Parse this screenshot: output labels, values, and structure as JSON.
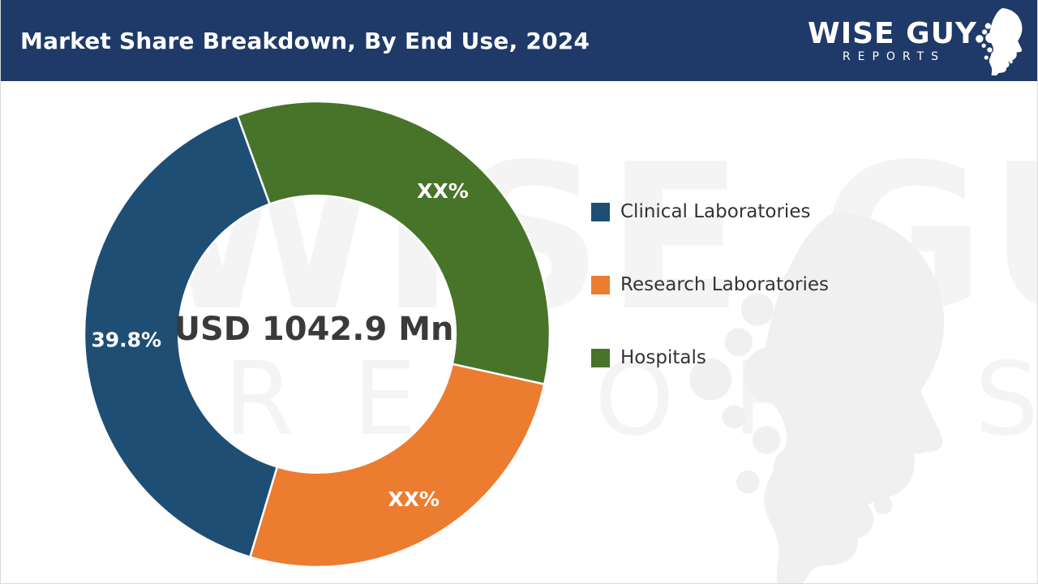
{
  "header": {
    "title": "Market Share Breakdown, By End Use, 2024",
    "logo": {
      "line1": "WISE GUY",
      "line2": "REPORTS"
    }
  },
  "watermark": {
    "line1": "WISE GUY",
    "line2": "REPORTS"
  },
  "chart_data": {
    "type": "pie",
    "variant": "donut",
    "title": "Market Share Breakdown, By End Use, 2024",
    "center_label": "USD 1042.9 Mn",
    "start_angle_deg": 110,
    "counterclockwise": true,
    "inner_radius_frac": 0.595,
    "legend_position": "right",
    "segments": [
      {
        "label": "Clinical Laboratories",
        "display_value": "39.8%",
        "share_pct": 39.8,
        "color": "#1F4E74"
      },
      {
        "label": "Research Laboratories",
        "display_value": "XX%",
        "share_pct": 26.2,
        "color": "#EC7C30"
      },
      {
        "label": "Hospitals",
        "display_value": "XX%",
        "share_pct": 34.0,
        "color": "#477429"
      }
    ]
  },
  "colors": {
    "header_bg": "#1F3A68",
    "watermark": "#f4f4f4",
    "watermark_face": "#f0f0f0",
    "center_text": "#3a3a3a",
    "legend_text": "#333333",
    "frame_border": "#d9d9d9"
  }
}
